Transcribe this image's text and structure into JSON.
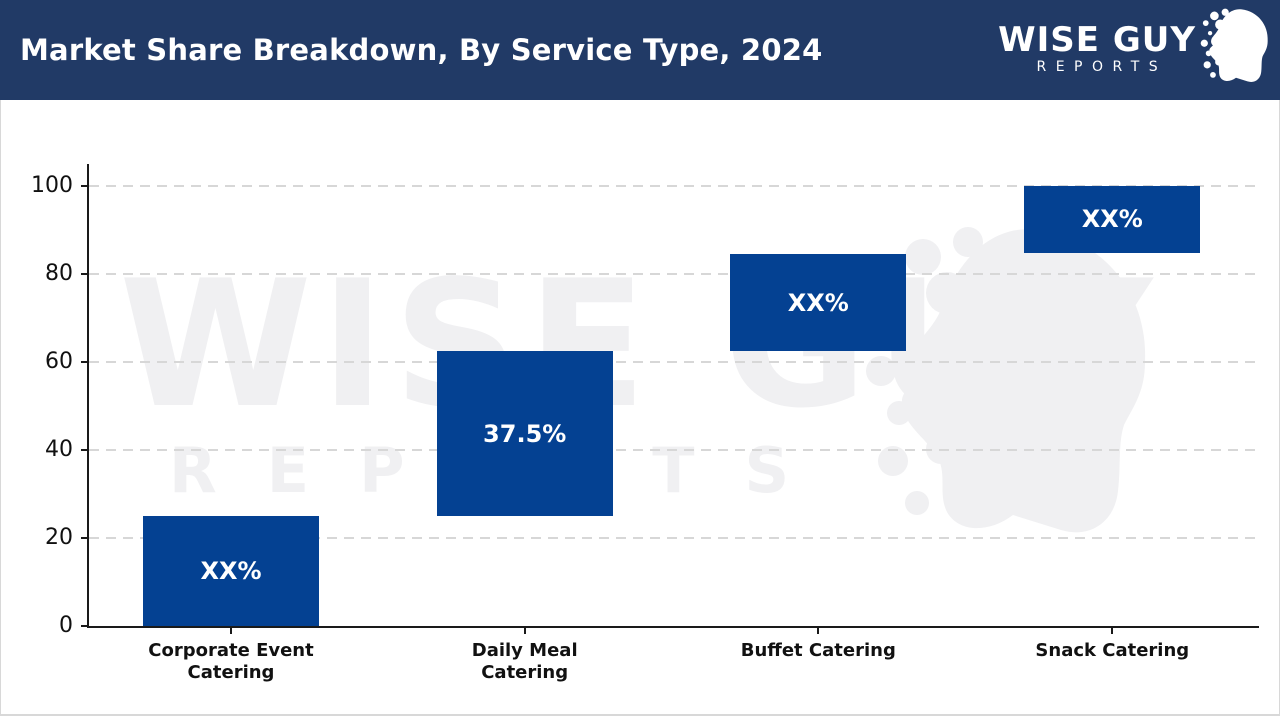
{
  "header": {
    "title": "Market Share Breakdown, By Service Type, 2024"
  },
  "logo": {
    "line1": "WISE GUY",
    "line2": "REPORTS"
  },
  "watermark": {
    "line1": "WISE GUY",
    "line2": "REPORTS"
  },
  "colors": {
    "header_bg": "#213a66",
    "bar": "#044192",
    "grid": "#d7d7d7",
    "axis": "#1a1a1a",
    "text": "#111111",
    "watermark": "#f0f0f2",
    "panel_border": "#d8d8d8",
    "label": "#ffffff"
  },
  "chart_data": {
    "type": "bar",
    "subtype": "floating-waterfall",
    "title": "Market Share Breakdown, By Service Type, 2024",
    "categories": [
      "Corporate Event\nCatering",
      "Daily Meal\nCatering",
      "Buffet Catering",
      "Snack Catering"
    ],
    "bars": [
      {
        "category": "Corporate Event Catering",
        "start": 0,
        "end": 25,
        "label": "XX%"
      },
      {
        "category": "Daily Meal Catering",
        "start": 25,
        "end": 62.5,
        "label": "37.5%"
      },
      {
        "category": "Buffet Catering",
        "start": 62.5,
        "end": 84.5,
        "label": "XX%"
      },
      {
        "category": "Snack Catering",
        "start": 84.8,
        "end": 100,
        "label": "XX%"
      }
    ],
    "ylim": [
      0,
      100
    ],
    "yticks": [
      0,
      20,
      40,
      60,
      80,
      100
    ],
    "xlabel": "",
    "ylabel": "",
    "grid": "dashed-horizontal",
    "legend": "none"
  }
}
